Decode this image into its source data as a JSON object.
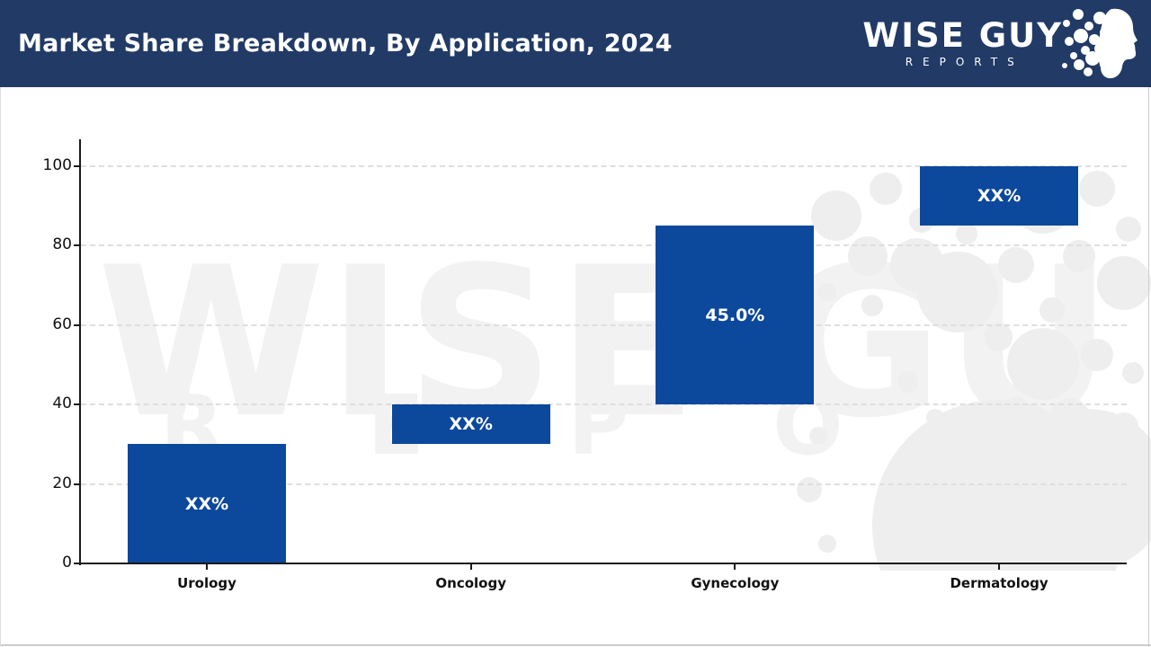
{
  "header": {
    "title": "Market Share Breakdown, By Application, 2024",
    "logo": {
      "name": "WISE GUY",
      "sub": "REPORTS"
    }
  },
  "watermark": {
    "big": "WISE GU",
    "sub": "R E P O R T S"
  },
  "colors": {
    "header_bg": "#213a66",
    "bar": "#0c489c",
    "bar_label": "#ffffff",
    "grid": "#dedede",
    "axis": "#1a1a1a",
    "watermark": "#f2f2f2"
  },
  "chart_data": {
    "type": "bar",
    "subtype": "waterfall",
    "title": "Market Share Breakdown, By Application, 2024",
    "categories": [
      "Urology",
      "Oncology",
      "Gynecology",
      "Dermatology"
    ],
    "segments": [
      {
        "category": "Urology",
        "start": 0,
        "end": 30,
        "label": "XX%"
      },
      {
        "category": "Oncology",
        "start": 30,
        "end": 40,
        "label": "XX%"
      },
      {
        "category": "Gynecology",
        "start": 40,
        "end": 85,
        "label": "45.0%"
      },
      {
        "category": "Dermatology",
        "start": 85,
        "end": 100,
        "label": "XX%"
      }
    ],
    "yticks": [
      0,
      20,
      40,
      60,
      80,
      100
    ],
    "ylim": [
      0,
      106
    ],
    "xlabel": "",
    "ylabel": "",
    "grid": "dashed-horizontal",
    "legend": null
  }
}
